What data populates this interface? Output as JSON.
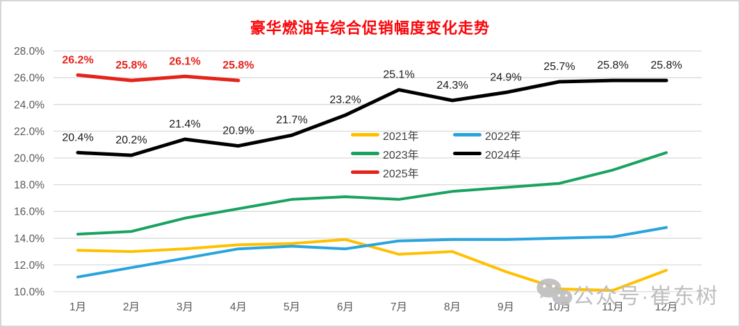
{
  "title": "豪华燃油车综合促销幅度变化走势",
  "watermark": {
    "text": "公众号·崔东树",
    "icon": "wechat-icon"
  },
  "colors": {
    "title_red": "#fb0509",
    "gridline": "#d9d9d9",
    "axis_text": "#595959",
    "legend_text": "#3f3f3f",
    "watermark_gray": "#bfbfbf"
  },
  "chart_data": {
    "type": "line",
    "title": "豪华燃油车综合促销幅度变化走势",
    "categories": [
      "1月",
      "2月",
      "3月",
      "4月",
      "5月",
      "6月",
      "7月",
      "8月",
      "9月",
      "10月",
      "11月",
      "12月"
    ],
    "y_ticks": [
      {
        "value": 28,
        "label": "28.0%"
      },
      {
        "value": 26,
        "label": "26.0%"
      },
      {
        "value": 24,
        "label": "24.0%"
      },
      {
        "value": 22,
        "label": "22.0%"
      },
      {
        "value": 20,
        "label": "20.0%"
      },
      {
        "value": 18,
        "label": "18.0%"
      },
      {
        "value": 16,
        "label": "16.0%"
      },
      {
        "value": 14,
        "label": "14.0%"
      },
      {
        "value": 12,
        "label": "12.0%"
      },
      {
        "value": 10,
        "label": "10.0%"
      }
    ],
    "ylim": [
      10,
      28
    ],
    "grid": true,
    "legend_position": "inside-upper-middle",
    "series": [
      {
        "name": "2021年",
        "color": "#ffc000",
        "values": [
          13.1,
          13.0,
          13.2,
          13.5,
          13.6,
          13.9,
          12.8,
          13.0,
          11.5,
          10.2,
          10.1,
          11.6
        ],
        "labels": null,
        "label_bold": false
      },
      {
        "name": "2022年",
        "color": "#2aa4dc",
        "values": [
          11.1,
          11.8,
          12.5,
          13.2,
          13.4,
          13.2,
          13.8,
          13.9,
          13.9,
          14.0,
          14.1,
          14.8
        ],
        "labels": null,
        "label_bold": false
      },
      {
        "name": "2023年",
        "color": "#1aa260",
        "values": [
          14.3,
          14.5,
          15.5,
          16.2,
          16.9,
          17.1,
          16.9,
          17.5,
          17.8,
          18.1,
          19.1,
          20.4
        ],
        "labels": null,
        "label_bold": false
      },
      {
        "name": "2024年",
        "color": "#000000",
        "values": [
          20.4,
          20.2,
          21.4,
          20.9,
          21.7,
          23.2,
          25.1,
          24.3,
          24.9,
          25.7,
          25.8,
          25.8
        ],
        "labels": [
          "20.4%",
          "20.2%",
          "21.4%",
          "20.9%",
          "21.7%",
          "23.2%",
          "25.1%",
          "24.3%",
          "24.9%",
          "25.7%",
          "25.8%",
          "25.8%"
        ],
        "label_bold": false
      },
      {
        "name": "2025年",
        "color": "#e4231b",
        "values": [
          26.2,
          25.8,
          26.1,
          25.8
        ],
        "labels": [
          "26.2%",
          "25.8%",
          "26.1%",
          "25.8%"
        ],
        "label_bold": true
      }
    ]
  }
}
